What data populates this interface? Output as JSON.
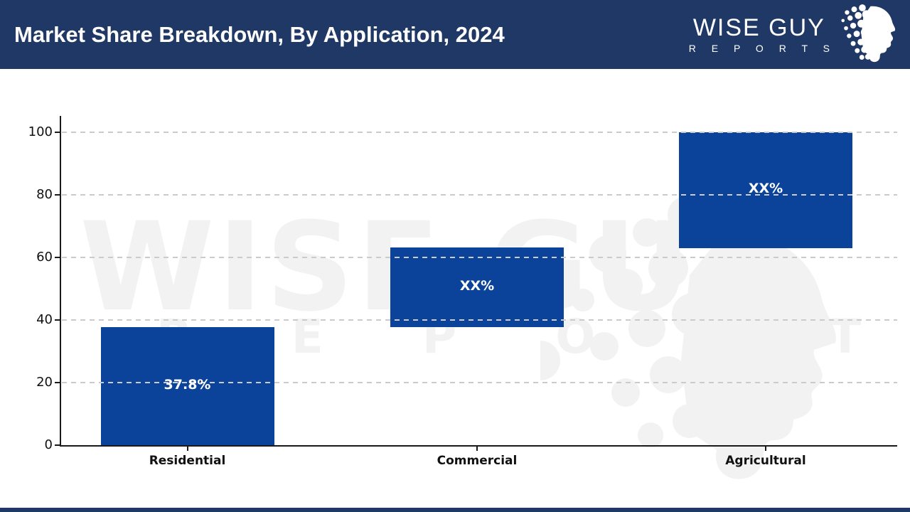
{
  "header": {
    "title": "Market Share Breakdown, By Application, 2024",
    "brand": {
      "wordmark": "WISE GUY",
      "sub": "R E P O R T S"
    }
  },
  "watermark": {
    "line1": "WISE GUY",
    "line2": "R E P O R T S"
  },
  "chart_data": {
    "type": "bar",
    "subtype": "waterfall-floating-bars",
    "title": "Market Share Breakdown, By Application, 2024",
    "categories": [
      "Residential",
      "Commercial",
      "Agricultural"
    ],
    "segments": [
      {
        "category": "Residential",
        "start": 0,
        "end": 37.8,
        "label": "37.8%"
      },
      {
        "category": "Commercial",
        "start": 37.8,
        "end": 63.2,
        "label": "XX%"
      },
      {
        "category": "Agricultural",
        "start": 63.0,
        "end": 100.0,
        "label": "XX%"
      }
    ],
    "yticks": [
      0,
      20,
      40,
      60,
      80,
      100
    ],
    "ylim": [
      0,
      100
    ],
    "xlabel": "",
    "ylabel": "",
    "grid": "horizontal-dashed",
    "legend": "none"
  },
  "colors": {
    "header_bg": "#1f3865",
    "footer_bg": "#1f3865",
    "bar": "#0a4399",
    "bar_label": "#ffffff",
    "axis": "#1a1a1a",
    "grid": "#cbcbcb",
    "watermark": "#f2f2f3"
  }
}
